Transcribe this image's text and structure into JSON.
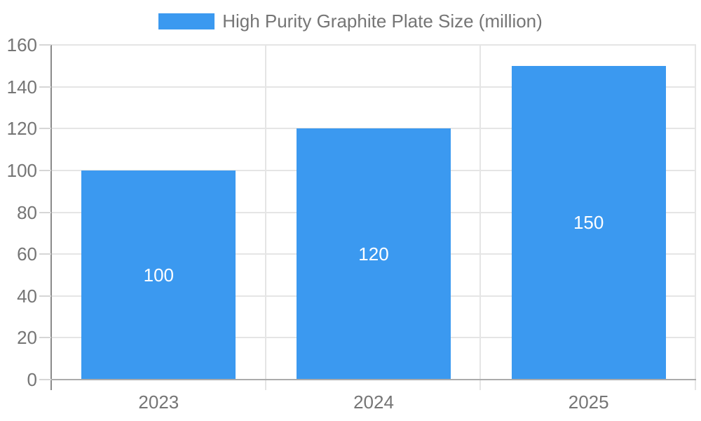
{
  "page": {
    "background": "#ffffff"
  },
  "legend": {
    "label": "High Purity Graphite Plate Size (million)",
    "swatch_color": "#3B99F0",
    "position": "top"
  },
  "chart_data": {
    "type": "bar",
    "title": "High Purity Graphite Plate Size (million)",
    "categories": [
      "2023",
      "2024",
      "2025"
    ],
    "series": [
      {
        "name": "High Purity Graphite Plate Size (million)",
        "values": [
          100,
          120,
          150
        ]
      }
    ],
    "data_labels": [
      "100",
      "120",
      "150"
    ],
    "xlabel": "",
    "ylabel": "",
    "ylim": [
      0,
      160
    ],
    "yticks": [
      0,
      20,
      40,
      60,
      80,
      100,
      120,
      140,
      160
    ],
    "grid": true,
    "legend_position": "top",
    "colors": {
      "bar": "#3B99F0",
      "tick_label": "#757575",
      "grid": "#E5E5E5",
      "y_axis": "#8A8A8A",
      "x_axis": "#ABABAB",
      "value_label": "#FFFFFF"
    }
  }
}
